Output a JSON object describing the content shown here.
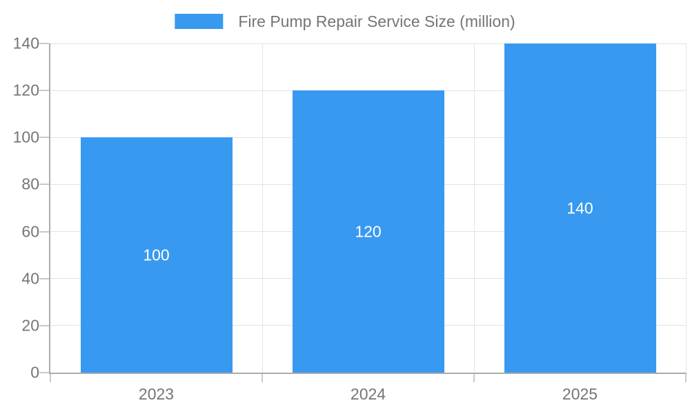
{
  "legend": {
    "label": "Fire Pump Repair Service Size (million)"
  },
  "chart_data": {
    "type": "bar",
    "title": "Fire Pump Repair Service Size (million)",
    "categories": [
      "2023",
      "2024",
      "2025"
    ],
    "series": [
      {
        "name": "Fire Pump Repair Service Size (million)",
        "values": [
          100,
          120,
          140
        ]
      }
    ],
    "data_labels": [
      "100",
      "120",
      "140"
    ],
    "xlabel": "",
    "ylabel": "",
    "ylim": [
      0,
      140
    ],
    "yticks": [
      0,
      20,
      40,
      60,
      80,
      100,
      120,
      140
    ],
    "grid": "on",
    "legend_position": "top-center",
    "colors": {
      "bar": "#3899F0",
      "axis_label_text": "#757575",
      "bar_label_text": "#ffffff",
      "axis_line": "#ababab",
      "gridline": "#e3e3e3",
      "tick": "#c9c9c9",
      "background": "#ffffff"
    }
  }
}
